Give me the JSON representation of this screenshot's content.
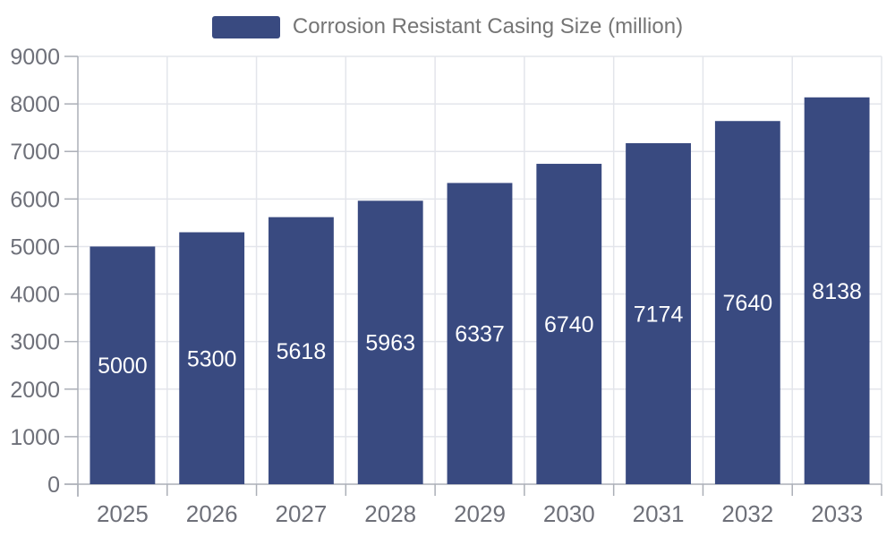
{
  "chart_data": {
    "type": "bar",
    "title": "",
    "legend_position": "top",
    "categories": [
      "2025",
      "2026",
      "2027",
      "2028",
      "2029",
      "2030",
      "2031",
      "2032",
      "2033"
    ],
    "series": [
      {
        "name": "Corrosion Resistant Casing Size (million)",
        "values": [
          5000,
          5300,
          5618,
          5963,
          6337,
          6740,
          7174,
          7640,
          8138
        ]
      }
    ],
    "xlabel": "",
    "ylabel": "",
    "ylim": [
      0,
      9000
    ],
    "yticks": [
      0,
      1000,
      2000,
      3000,
      4000,
      5000,
      6000,
      7000,
      8000,
      9000
    ],
    "grid": true,
    "bar_label_position": "inside-center",
    "colors": {
      "bar": "#394A80",
      "bar_value_label": "#FFFFFF",
      "axis_text": "#6E7079",
      "legend_text": "#757575",
      "grid_line": "#E3E5EB",
      "axis_line": "#ABAFB7"
    }
  }
}
